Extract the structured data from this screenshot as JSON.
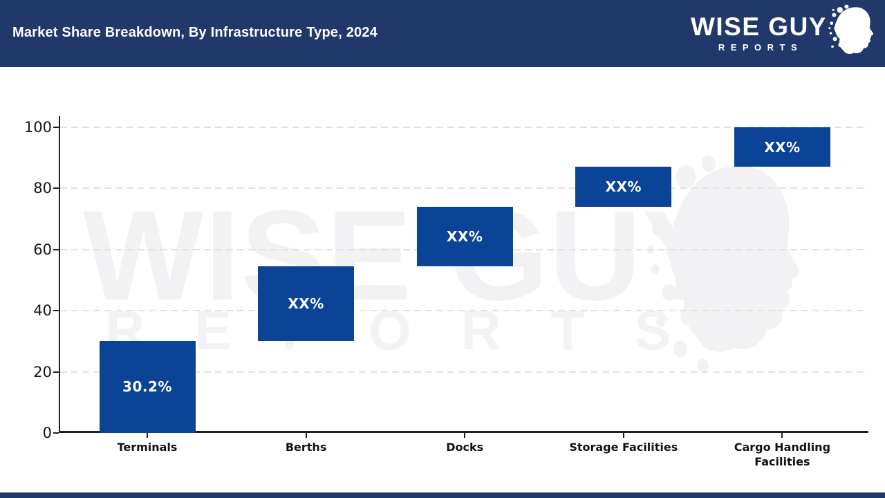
{
  "header": {
    "title": "Market Share Breakdown, By Infrastructure Type, 2024",
    "logo": {
      "line1": "WISE GUY",
      "line2": "REPORTS"
    }
  },
  "watermark": {
    "line1": "WISE GUY",
    "line2": "REPORTS"
  },
  "chart_data": {
    "type": "bar",
    "subtype": "floating-waterfall",
    "title": "Market Share Breakdown, By Infrastructure Type, 2024",
    "categories": [
      "Terminals",
      "Berths",
      "Docks",
      "Storage Facilities",
      "Cargo Handling Facilities"
    ],
    "segments": [
      {
        "category": "Terminals",
        "start": 0,
        "end": 30.2,
        "size": 30.2,
        "label": "30.2%"
      },
      {
        "category": "Berths",
        "start": 30.2,
        "end": 54.5,
        "size": 24.3,
        "label": "XX%"
      },
      {
        "category": "Docks",
        "start": 54.5,
        "end": 74,
        "size": 19.5,
        "label": "XX%"
      },
      {
        "category": "Storage Facilities",
        "start": 74,
        "end": 87,
        "size": 13,
        "label": "XX%"
      },
      {
        "category": "Cargo Handling Facilities",
        "start": 87,
        "end": 100,
        "size": 13,
        "label": "XX%"
      }
    ],
    "yticks": [
      0,
      20,
      40,
      60,
      80,
      100
    ],
    "ylim": [
      0,
      103.6
    ],
    "xlabel": "",
    "ylabel": "",
    "legend": "none",
    "grid": "horizontal-dashed",
    "bar_color": "#0b4397",
    "bar_label_color": "#ffffff"
  },
  "colors": {
    "header_bg": "#21386b",
    "footer_bg": "#21386b",
    "bar": "#0b4397",
    "axis": "#1f1f1f",
    "gridline": "#e1e1e1",
    "tick_label": "#151515",
    "watermark": "#f2f2f4"
  }
}
